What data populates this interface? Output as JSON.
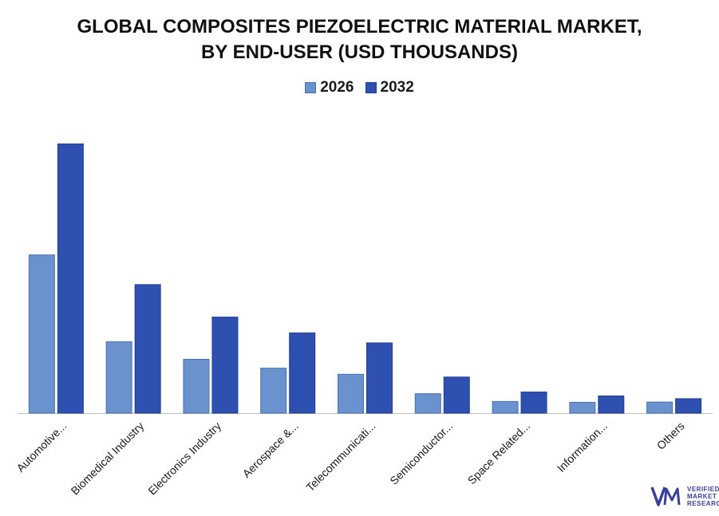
{
  "title_line1": "GLOBAL COMPOSITES PIEZOELECTRIC MATERIAL MARKET,",
  "title_line2": "BY END-USER (USD THOUSANDS)",
  "colors": {
    "s2026": "#6a92cf",
    "s2032": "#2e51b1",
    "axis": "#bfbfbf"
  },
  "logo": {
    "line1": "VERIFIED",
    "line2": "MARKET",
    "line3": "RESEARCH",
    "icon": "vmr-logo-icon"
  },
  "chart_data": {
    "type": "bar",
    "title": "GLOBAL COMPOSITES PIEZOELECTRIC MATERIAL MARKET, BY END-USER (USD THOUSANDS)",
    "categories": [
      "Automotive...",
      "Biomedical Industry",
      "Electronics Industry",
      "Aerospace &...",
      "Telecommunicati...",
      "Semiconductor...",
      "Space Related...",
      "Information...",
      "Others"
    ],
    "series": [
      {
        "name": "2026",
        "values": [
          57.0,
          25.7,
          19.4,
          16.2,
          14.0,
          7.0,
          4.2,
          3.9,
          4.0
        ]
      },
      {
        "name": "2032",
        "values": [
          97.0,
          46.3,
          34.6,
          28.9,
          25.3,
          13.0,
          7.6,
          6.2,
          5.2
        ]
      }
    ],
    "ylim": [
      0,
      100
    ],
    "grid": false,
    "legend": "top-center",
    "xlabel": "",
    "ylabel": ""
  }
}
